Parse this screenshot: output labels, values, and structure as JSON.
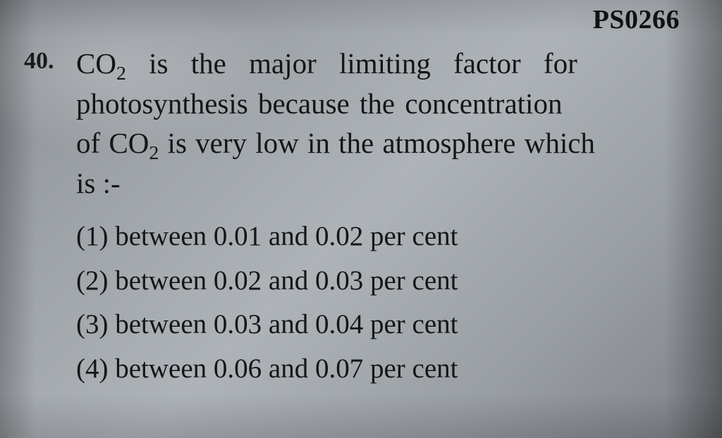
{
  "code": "PS0266",
  "question_number": "40.",
  "stem": {
    "line1_html": "CO<sub>2</sub> is the major limiting factor for",
    "line2": "photosynthesis because the concentration",
    "line3_html": "of CO<sub>2</sub> is very low in the atmosphere which",
    "line4": "is :-"
  },
  "options": [
    "(1) between 0.01 and 0.02 per cent",
    "(2) between 0.02 and 0.03 per cent",
    "(3) between 0.03 and 0.04 per cent",
    "(4) between 0.06 and 0.07 per cent"
  ]
}
